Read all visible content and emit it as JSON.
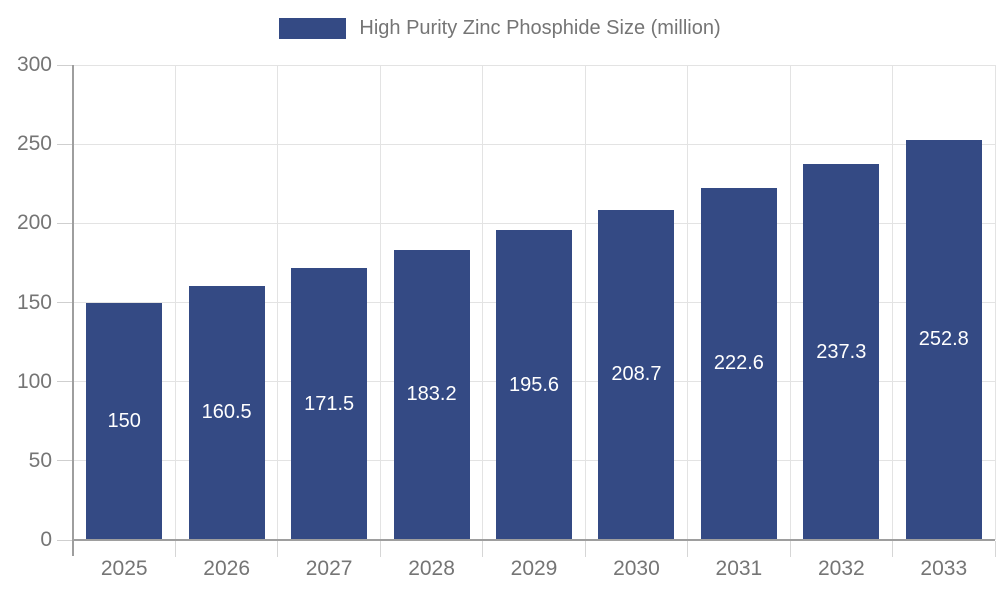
{
  "chart_data": {
    "type": "bar",
    "title": "High Purity Zinc Phosphide Size (million)",
    "legend_label": "High Purity Zinc Phosphide Size (million)",
    "legend_position": "top",
    "categories": [
      "2025",
      "2026",
      "2027",
      "2028",
      "2029",
      "2030",
      "2031",
      "2032",
      "2033"
    ],
    "values": [
      150,
      160.5,
      171.5,
      183.2,
      195.6,
      208.7,
      222.6,
      237.3,
      252.8
    ],
    "value_labels": [
      "150",
      "160.5",
      "171.5",
      "183.2",
      "195.6",
      "208.7",
      "222.6",
      "237.3",
      "252.8"
    ],
    "xlabel": "",
    "ylabel": "",
    "ylim": [
      0,
      300
    ],
    "yticks": [
      0,
      50,
      100,
      150,
      200,
      250,
      300
    ],
    "grid": true,
    "colors": {
      "bar": "#344a84",
      "bar_label": "#ffffff",
      "axis_text": "#757575",
      "grid_line": "#e3e3e3",
      "axis_line": "#9e9e9e",
      "tick_mark": "#cfcfcf"
    }
  }
}
